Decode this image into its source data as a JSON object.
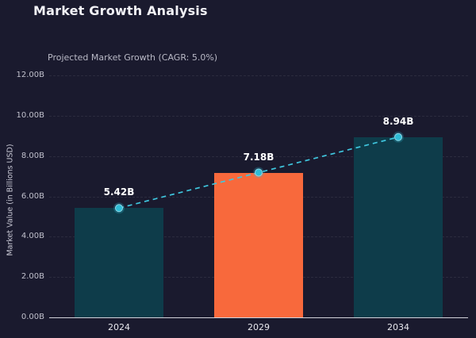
{
  "page": {
    "background": "#1a1a2e"
  },
  "chart_data": {
    "type": "bar",
    "title": "Market Growth Analysis",
    "subtitle": "Projected Market Growth (CAGR: 5.0%)",
    "xlabel": "",
    "ylabel": "Market Value (in Billions USD)",
    "categories": [
      "2024",
      "2029",
      "2034"
    ],
    "values": [
      5.42,
      7.18,
      8.94
    ],
    "value_labels": [
      "5.42B",
      "7.18B",
      "8.94B"
    ],
    "yticks": [
      "0.00B",
      "2.00B",
      "4.00B",
      "6.00B",
      "8.00B",
      "10.00B",
      "12.00B"
    ],
    "ytick_values": [
      0,
      2,
      4,
      6,
      8,
      10,
      12
    ],
    "ylim": [
      0,
      12
    ],
    "grid": "faint dashed horizontal",
    "legend": "none",
    "bar_colors": [
      "#0e3c4a",
      "#f8693c",
      "#0e3c4a"
    ],
    "trend_line": {
      "style": "dashed",
      "color": "#3fc6de",
      "marker_color": "#2fbcd6",
      "marker_ring_color": "#8fd9e8"
    },
    "axis_color": "#d2d2da",
    "background": "#1a1a2e"
  }
}
